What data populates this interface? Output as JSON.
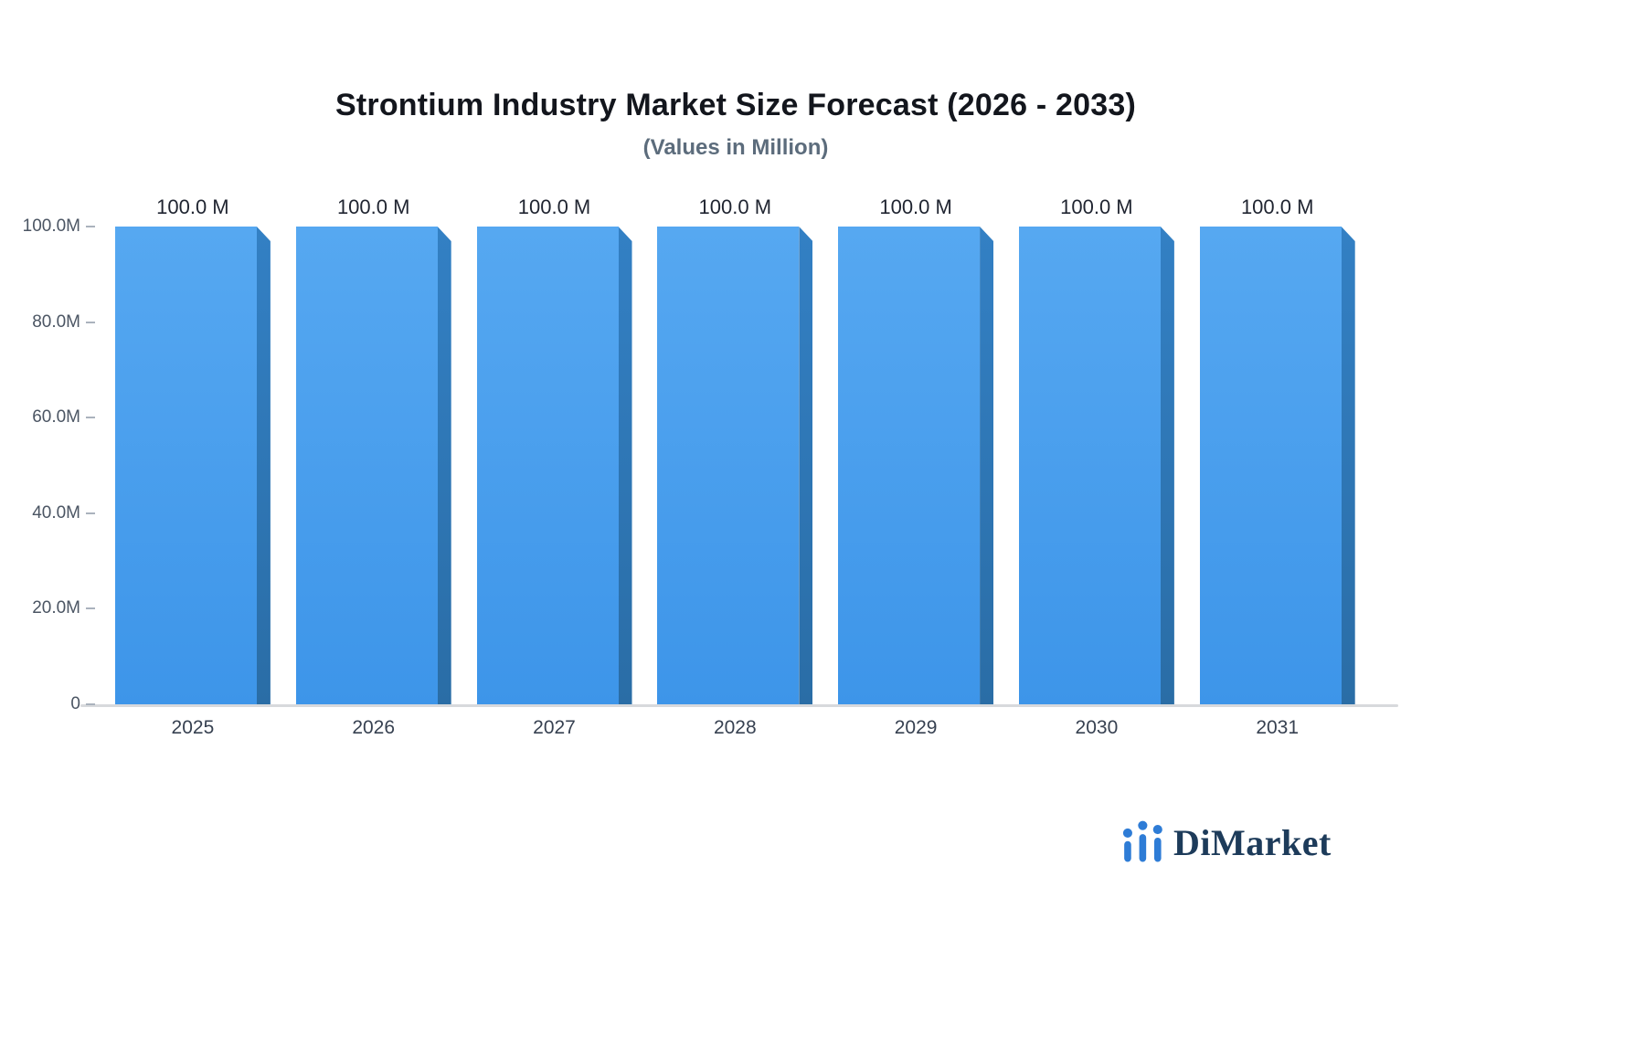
{
  "title": "Strontium Industry Market Size Forecast (2026 - 2033)",
  "subtitle": "(Values in Million)",
  "chart_data": {
    "type": "bar",
    "title": "Strontium Industry Market Size Forecast (2026 - 2033)",
    "subtitle": "(Values in Million)",
    "categories": [
      "2025",
      "2026",
      "2027",
      "2028",
      "2029",
      "2030",
      "2031"
    ],
    "values": [
      100,
      100,
      100,
      100,
      100,
      100,
      100
    ],
    "bar_labels": [
      "100.0 M",
      "100.0 M",
      "100.0 M",
      "100.0 M",
      "100.0 M",
      "100.0 M",
      "100.0 M"
    ],
    "xlabel": "",
    "ylabel": "",
    "ylim": [
      0,
      100
    ],
    "y_ticks": [
      {
        "label": "100.0M",
        "value": 100
      },
      {
        "label": "80.0M",
        "value": 80
      },
      {
        "label": "60.0M",
        "value": 60
      },
      {
        "label": "40.0M",
        "value": 40
      },
      {
        "label": "20.0M",
        "value": 20
      },
      {
        "label": "0",
        "value": 0
      }
    ],
    "grid": false,
    "legend": "none",
    "colors": {
      "bar_top": "#56a8f1",
      "bar_bottom": "#3d95e9",
      "side_top": "#3380c4",
      "side_bottom": "#2a6da6",
      "axis_line": "#d7d9dc"
    }
  },
  "logo": {
    "text": "DiMarket",
    "icon": "bar-chart-icon",
    "icon_color": "#2e7cd6",
    "text_color": "#1d3b5a"
  }
}
